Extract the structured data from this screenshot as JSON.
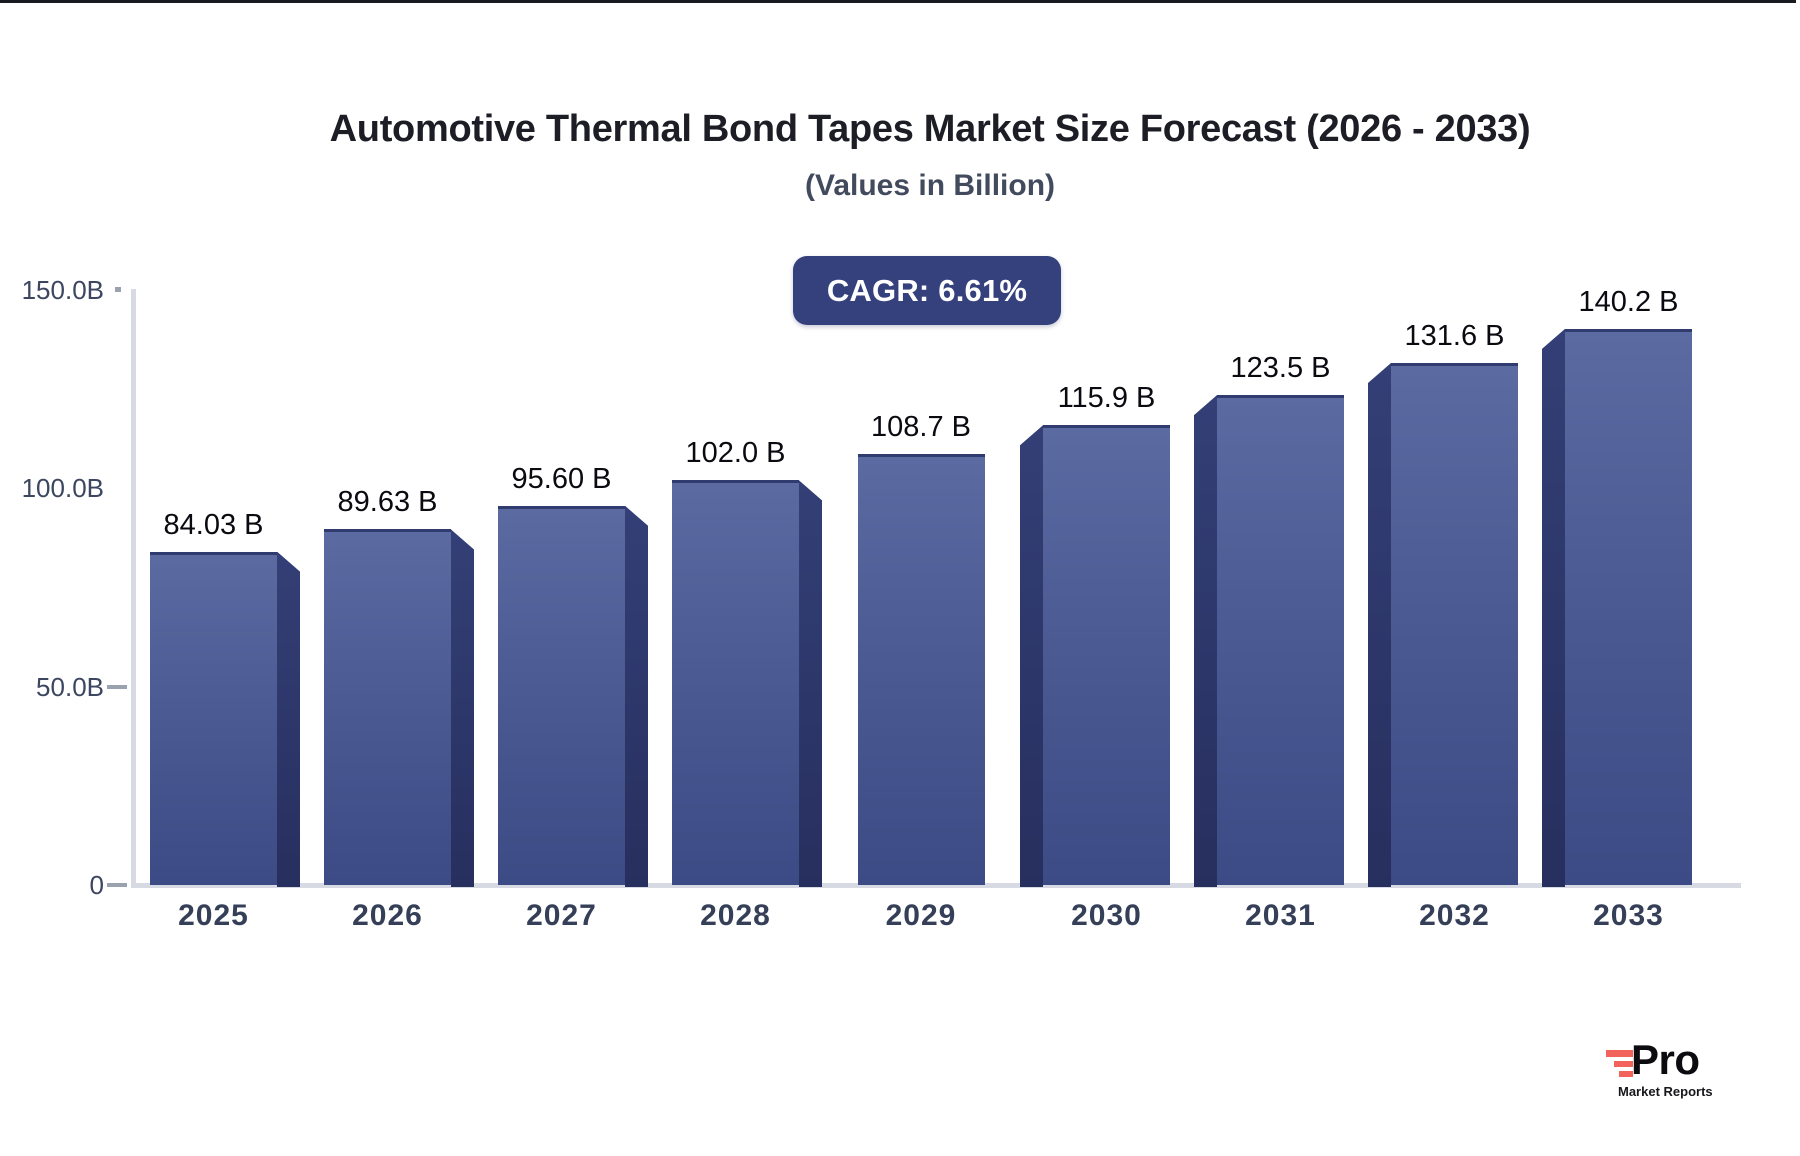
{
  "header": {
    "title": "Automotive Thermal Bond Tapes Market Size Forecast (2026 - 2033)",
    "subtitle": "(Values in Billion)"
  },
  "badge": {
    "label": "CAGR: 6.61%",
    "background": "#35417d",
    "text_color": "#ffffff"
  },
  "chart_data": {
    "type": "bar",
    "title": "Automotive Thermal Bond Tapes Market Size Forecast (2026 - 2033)",
    "subtitle": "(Values in Billion)",
    "categories": [
      "2025",
      "2026",
      "2027",
      "2028",
      "2029",
      "2030",
      "2031",
      "2032",
      "2033"
    ],
    "values": [
      84.03,
      89.63,
      95.6,
      102.0,
      108.7,
      115.9,
      123.5,
      131.6,
      140.2
    ],
    "value_labels": [
      "84.03 B",
      "89.63 B",
      "95.60 B",
      "102.0 B",
      "108.7 B",
      "115.9 B",
      "123.5 B",
      "131.6 B",
      "140.2 B"
    ],
    "xlabel": "",
    "ylabel": "",
    "ylim": [
      0,
      150
    ],
    "yticks": [
      {
        "value": 150,
        "label": "150.0B",
        "tick": "dot"
      },
      {
        "value": 100,
        "label": "100.0B",
        "tick": "none"
      },
      {
        "value": 50,
        "label": "50.0B",
        "tick": "dash"
      },
      {
        "value": 0,
        "label": "0",
        "tick": "dash"
      }
    ],
    "grid": false,
    "legend": false,
    "bar_face_color_top": "#5c6aa2",
    "bar_face_color_bottom": "#3c4a85",
    "bar_bevel_color": "#2b3568",
    "axis_color": "#d7dae2",
    "cagr_annotation": "CAGR: 6.61%"
  },
  "logo": {
    "name": "Pro",
    "tagline": "Market Reports",
    "accent_color": "#f2635c"
  }
}
